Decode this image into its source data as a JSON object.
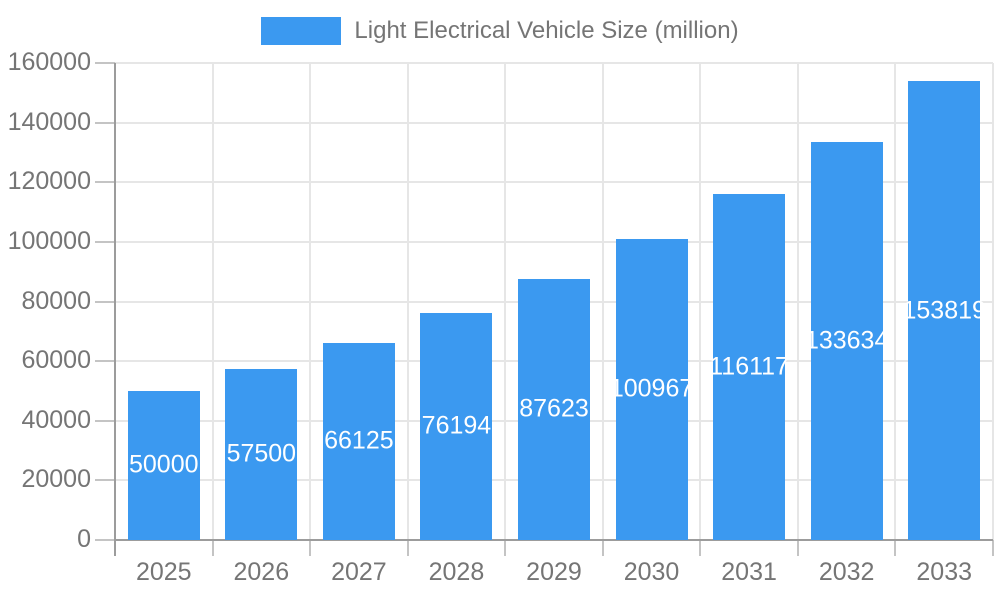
{
  "legend": {
    "label": "Light Electrical Vehicle Size (million)",
    "position": "top-center"
  },
  "chart_data": {
    "type": "bar",
    "title": "Light Electrical Vehicle Size (million)",
    "categories": [
      "2025",
      "2026",
      "2027",
      "2028",
      "2029",
      "2030",
      "2031",
      "2032",
      "2033"
    ],
    "values": [
      50000,
      57500,
      66125,
      76194,
      87623,
      100967,
      116117,
      133634,
      153819
    ],
    "series": [
      {
        "name": "Light Electrical Vehicle Size (million)",
        "values": [
          50000,
          57500,
          66125,
          76194,
          87623,
          100967,
          116117,
          133634,
          153819
        ]
      }
    ],
    "xlabel": "",
    "ylabel": "",
    "ylim": [
      0,
      160000
    ],
    "ytick_step": 20000,
    "ytick_labels": [
      "0",
      "20000",
      "40000",
      "60000",
      "80000",
      "100000",
      "120000",
      "140000",
      "160000"
    ],
    "grid": true,
    "legend_position": "top",
    "bar_label_position": "inside-center",
    "colors": {
      "bar": "#3b99f0",
      "bar_label": "#ffffff",
      "axis_text": "#757575",
      "grid_line": "#e6e6e6",
      "axis_line": "#9c9c9c",
      "tick_line": "#c4c4c4",
      "background": "#ffffff"
    }
  }
}
